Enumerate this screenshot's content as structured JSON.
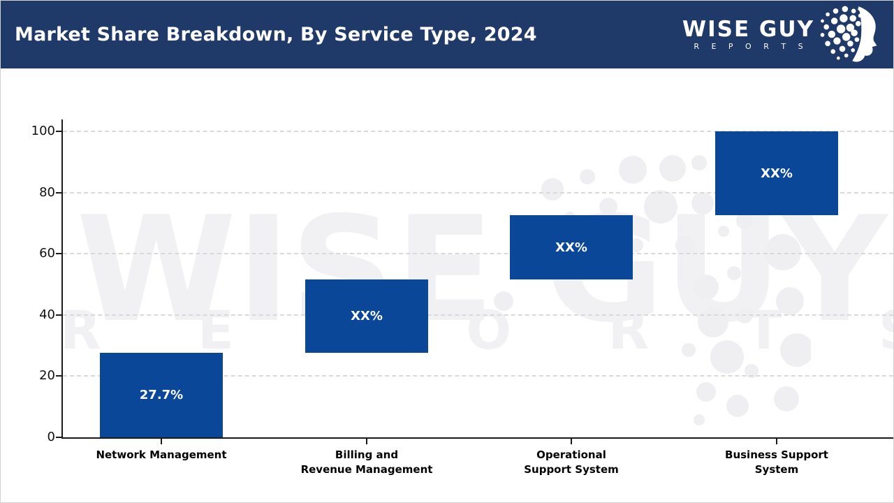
{
  "header": {
    "title": "Market Share Breakdown, By Service Type, 2024",
    "bg_color": "#1f3a68",
    "logo": {
      "name": "WISE GUY",
      "sub": "R E P O R T S"
    }
  },
  "watermark": {
    "line1": "WISE GUY",
    "line2": "R E P O R T S"
  },
  "chart_data": {
    "type": "bar",
    "subtype": "floating-waterfall",
    "title": "Market Share Breakdown, By Service Type, 2024",
    "categories": [
      [
        "Network Management"
      ],
      [
        "Billing and",
        "Revenue Management"
      ],
      [
        "Operational",
        "Support System"
      ],
      [
        "Business Support",
        "System"
      ]
    ],
    "series": [
      {
        "name": "Market Share (%)",
        "segments": [
          [
            0,
            27.7
          ],
          [
            27.7,
            51.5
          ],
          [
            51.5,
            72.5
          ],
          [
            72.5,
            100
          ]
        ]
      }
    ],
    "bar_labels": [
      "27.7%",
      "XX%",
      "XX%",
      "XX%"
    ],
    "ylim": [
      0,
      100
    ],
    "yticks": [
      0,
      20,
      40,
      60,
      80,
      100
    ],
    "bar_color": "#0b4798",
    "grid": "dashed-horizontal",
    "legend": "none"
  }
}
